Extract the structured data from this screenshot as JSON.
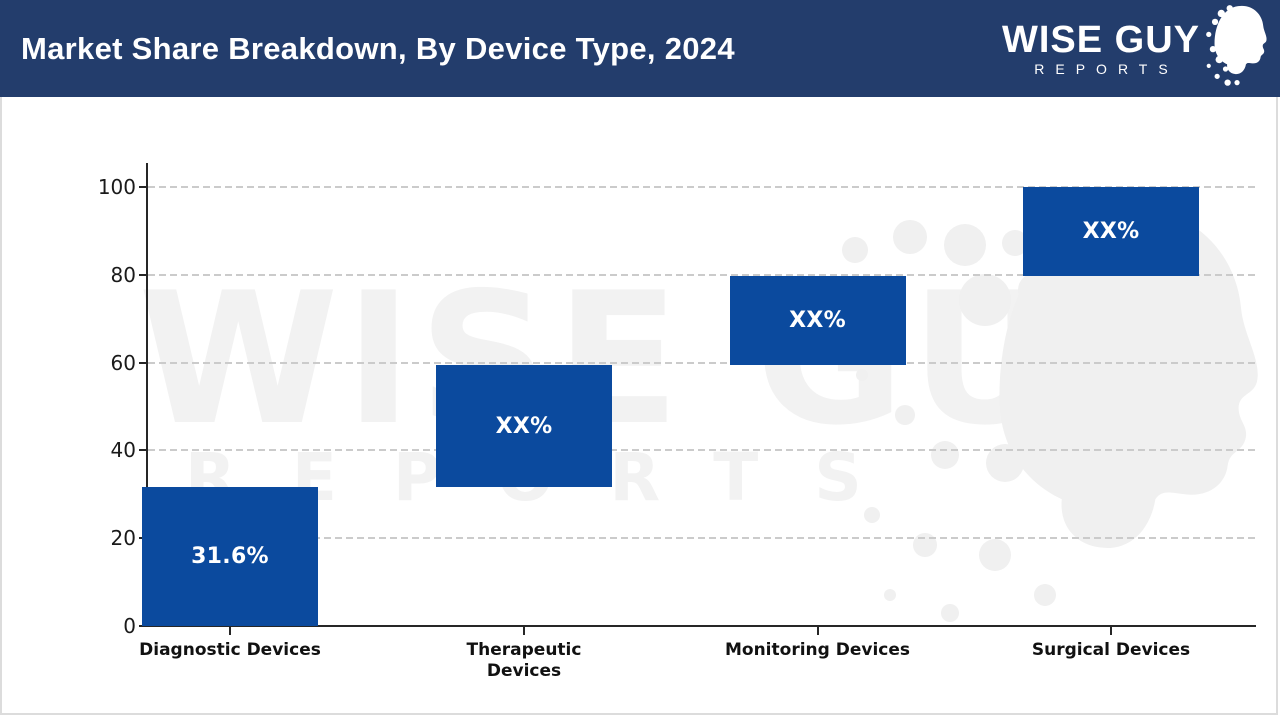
{
  "header": {
    "title": "Market Share Breakdown, By Device Type, 2024",
    "logo": {
      "line1": "WISE GUY",
      "line2": "REPORTS"
    }
  },
  "watermark": {
    "line1": "WISE GUY",
    "line2": "REPORTS"
  },
  "chart_data": {
    "type": "bar",
    "subtype": "waterfall-floating-bars",
    "title": "Market Share Breakdown, By Device Type, 2024",
    "categories": [
      "Diagnostic Devices",
      "Therapeutic Devices",
      "Monitoring Devices",
      "Surgical Devices"
    ],
    "category_tick_lines": [
      [
        "Diagnostic Devices"
      ],
      [
        "Therapeutic",
        "Devices"
      ],
      [
        "Monitoring Devices"
      ],
      [
        "Surgical Devices"
      ]
    ],
    "series": [
      {
        "category": "Diagnostic Devices",
        "start": 0,
        "end": 31.6,
        "label": "31.6%"
      },
      {
        "category": "Therapeutic Devices",
        "start": 31.6,
        "end": 59.5,
        "label": "XX%"
      },
      {
        "category": "Monitoring Devices",
        "start": 59.5,
        "end": 79.7,
        "label": "XX%"
      },
      {
        "category": "Surgical Devices",
        "start": 79.7,
        "end": 100,
        "label": "XX%"
      }
    ],
    "yticks": [
      0,
      20,
      40,
      60,
      80,
      100
    ],
    "ylim": [
      0,
      100
    ],
    "xlabel": "",
    "ylabel": "",
    "grid": "dashed-horizontal",
    "legend": "none",
    "colors": {
      "bar": "#0b4a9e",
      "bar_label": "#ffffff",
      "axis": "#262626",
      "grid": "#cbcbcb",
      "tick_label": "#1a1a1a"
    }
  },
  "colors": {
    "header_bg": "#233d6c",
    "card_bg": "#ffffff",
    "card_border": "#dcdcdc",
    "watermark": "#f2f2f2"
  }
}
